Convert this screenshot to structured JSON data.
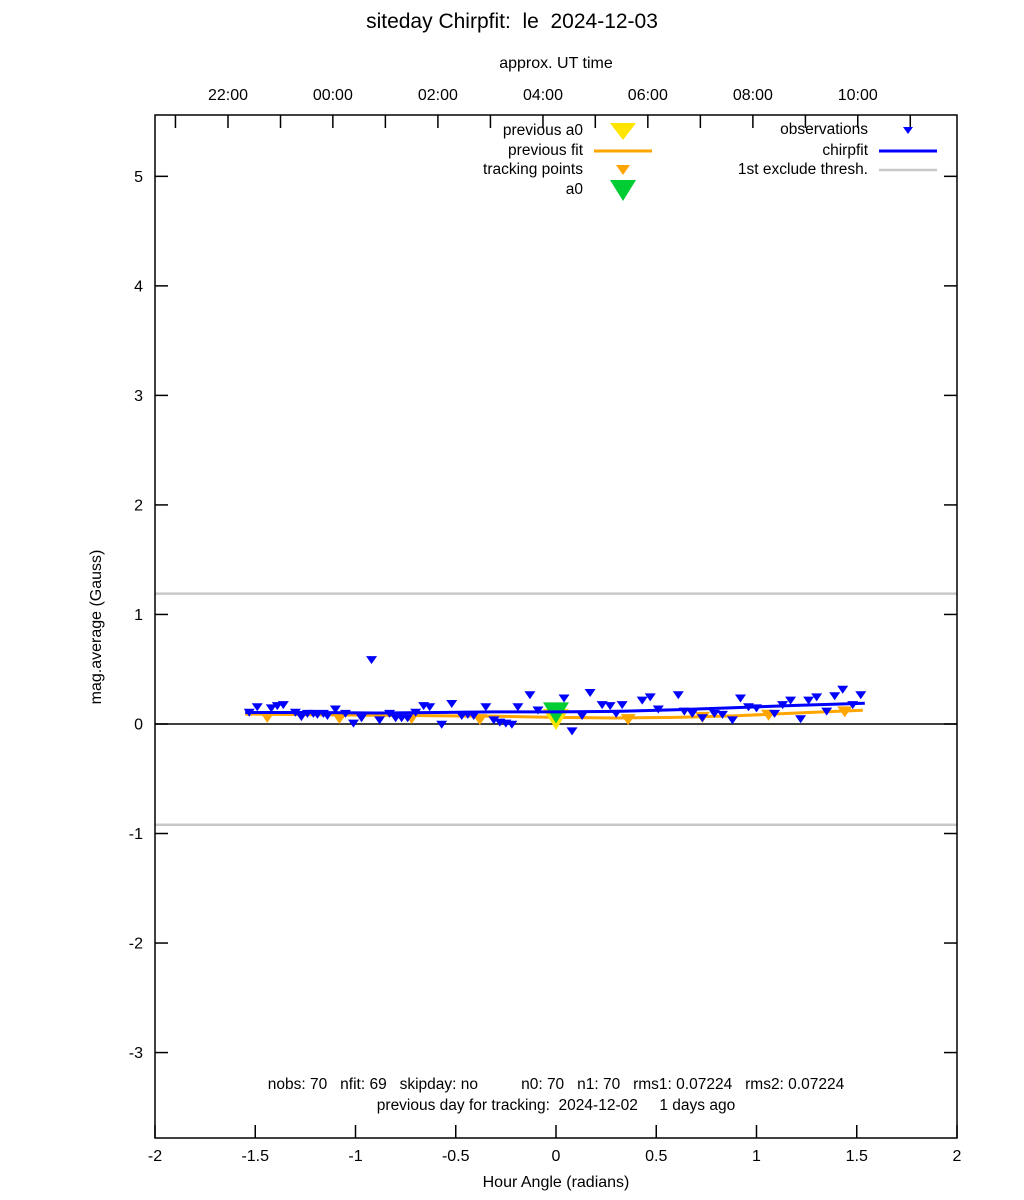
{
  "title": "siteday Chirpfit:  le  2024-12-03",
  "top_axis_label": "approx. UT time",
  "y_axis_label": "mag.average (Gauss)",
  "x_axis_label": "Hour Angle (radians)",
  "stats": {
    "line1": "nobs: 70   nfit: 69   skipday: no          n0: 70   n1: 70   rms1: 0.07224   rms2: 0.07224",
    "line2": "previous day for tracking:  2024-12-02     1 days ago"
  },
  "legend": {
    "left": [
      {
        "label": "previous a0",
        "marker": "large-triangle-down",
        "color": "#ffe500"
      },
      {
        "label": "previous fit",
        "marker": "line",
        "color": "#ffa500"
      },
      {
        "label": "tracking points",
        "marker": "small-triangle-down",
        "color": "#ffa500"
      },
      {
        "label": "a0",
        "marker": "large-triangle-down",
        "color": "#00cc33"
      }
    ],
    "right": [
      {
        "label": "observations",
        "marker": "small-triangle-down",
        "color": "#0000ff"
      },
      {
        "label": "chirpfit",
        "marker": "line",
        "color": "#0000ff"
      },
      {
        "label": "1st exclude thresh.",
        "marker": "line",
        "color": "#c8c8c8"
      }
    ]
  },
  "colors": {
    "observations": "#0000ff",
    "chirpfit": "#0000ff",
    "previous_fit": "#ffa500",
    "tracking_points": "#ffa500",
    "a0": "#00cc33",
    "previous_a0": "#ffe500",
    "exclude_threshold": "#c8c8c8"
  },
  "chart_data": {
    "type": "scatter",
    "title": "siteday Chirpfit:  le  2024-12-03",
    "xlabel": "Hour Angle (radians)",
    "ylabel": "mag.average (Gauss)",
    "xlim": [
      -2,
      2
    ],
    "ylim": [
      -3.78,
      5.56
    ],
    "grid": false,
    "zero_line": true,
    "x_ticks": [
      {
        "v": -2,
        "label": "-2"
      },
      {
        "v": -1.5,
        "label": "-1.5"
      },
      {
        "v": -1,
        "label": "-1"
      },
      {
        "v": -0.5,
        "label": "-0.5"
      },
      {
        "v": 0,
        "label": "0"
      },
      {
        "v": 0.5,
        "label": "0.5"
      },
      {
        "v": 1,
        "label": "1"
      },
      {
        "v": 1.5,
        "label": "1.5"
      },
      {
        "v": 2,
        "label": "2"
      }
    ],
    "y_ticks": [
      {
        "v": -3,
        "label": "-3"
      },
      {
        "v": -2,
        "label": "-2"
      },
      {
        "v": -1,
        "label": "-1"
      },
      {
        "v": 0,
        "label": "0"
      },
      {
        "v": 1,
        "label": "1"
      },
      {
        "v": 2,
        "label": "2"
      },
      {
        "v": 3,
        "label": "3"
      },
      {
        "v": 4,
        "label": "4"
      },
      {
        "v": 5,
        "label": "5"
      }
    ],
    "top_ticks": [
      {
        "ha": -1.898,
        "label": ""
      },
      {
        "ha": -1.636,
        "label": "22:00"
      },
      {
        "ha": -1.374,
        "label": ""
      },
      {
        "ha": -1.113,
        "label": "00:00"
      },
      {
        "ha": -0.851,
        "label": ""
      },
      {
        "ha": -0.589,
        "label": "02:00"
      },
      {
        "ha": -0.327,
        "label": ""
      },
      {
        "ha": -0.065,
        "label": "04:00"
      },
      {
        "ha": 0.196,
        "label": ""
      },
      {
        "ha": 0.458,
        "label": "06:00"
      },
      {
        "ha": 0.72,
        "label": ""
      },
      {
        "ha": 0.982,
        "label": "08:00"
      },
      {
        "ha": 1.244,
        "label": ""
      },
      {
        "ha": 1.505,
        "label": "10:00"
      },
      {
        "ha": 1.767,
        "label": ""
      }
    ],
    "thresholds": {
      "name": "1st exclude thresh.",
      "color": "#c8c8c8",
      "values": [
        1.19,
        -0.92
      ]
    },
    "series": [
      {
        "name": "previous fit",
        "type": "line",
        "color": "#ffa500",
        "width": 3,
        "points": [
          [
            -1.55,
            0.09
          ],
          [
            -1.2,
            0.085
          ],
          [
            -0.9,
            0.08
          ],
          [
            -0.6,
            0.075
          ],
          [
            -0.3,
            0.07
          ],
          [
            0,
            0.06
          ],
          [
            0.3,
            0.055
          ],
          [
            0.6,
            0.06
          ],
          [
            0.9,
            0.075
          ],
          [
            1.2,
            0.1
          ],
          [
            1.53,
            0.125
          ]
        ]
      },
      {
        "name": "previous a0",
        "type": "points",
        "marker": "triangle-down",
        "color": "#ffe500",
        "size": [
          26,
          21
        ],
        "points": [
          [
            0,
            0.06
          ]
        ]
      },
      {
        "name": "a0",
        "type": "points",
        "marker": "triangle-down",
        "color": "#00cc33",
        "size": [
          26,
          21
        ],
        "points": [
          [
            0,
            0.12
          ]
        ]
      },
      {
        "name": "tracking points",
        "type": "points",
        "marker": "triangle-down",
        "color": "#ffa500",
        "size": [
          15,
          11
        ],
        "points": [
          [
            -1.44,
            0.07
          ],
          [
            -1.08,
            0.06
          ],
          [
            -0.72,
            0.06
          ],
          [
            -0.38,
            0.05
          ],
          [
            0.36,
            0.05
          ],
          [
            0.73,
            0.07
          ],
          [
            1.06,
            0.09
          ],
          [
            1.44,
            0.12
          ]
        ]
      },
      {
        "name": "observations",
        "type": "points",
        "marker": "triangle-down",
        "color": "#0000ff",
        "size": [
          11,
          8
        ],
        "points": [
          [
            -1.53,
            0.11
          ],
          [
            -1.49,
            0.16
          ],
          [
            -1.42,
            0.15
          ],
          [
            -1.39,
            0.17
          ],
          [
            -1.36,
            0.18
          ],
          [
            -1.3,
            0.11
          ],
          [
            -1.27,
            0.07
          ],
          [
            -1.24,
            0.1
          ],
          [
            -1.21,
            0.1
          ],
          [
            -1.19,
            0.09
          ],
          [
            -1.16,
            0.1
          ],
          [
            -1.14,
            0.08
          ],
          [
            -1.1,
            0.14
          ],
          [
            -1.05,
            0.1
          ],
          [
            -1.01,
            0.01
          ],
          [
            -0.97,
            0.06
          ],
          [
            -0.92,
            0.59
          ],
          [
            -0.88,
            0.04
          ],
          [
            -0.83,
            0.1
          ],
          [
            -0.8,
            0.06
          ],
          [
            -0.77,
            0.06
          ],
          [
            -0.74,
            0.06
          ],
          [
            -0.7,
            0.11
          ],
          [
            -0.66,
            0.17
          ],
          [
            -0.63,
            0.16
          ],
          [
            -0.57,
            0.0
          ],
          [
            -0.52,
            0.19
          ],
          [
            -0.47,
            0.08
          ],
          [
            -0.44,
            0.09
          ],
          [
            -0.41,
            0.08
          ],
          [
            -0.35,
            0.16
          ],
          [
            -0.31,
            0.04
          ],
          [
            -0.28,
            0.02
          ],
          [
            -0.25,
            0.01
          ],
          [
            -0.22,
            0.0
          ],
          [
            -0.19,
            0.16
          ],
          [
            -0.13,
            0.27
          ],
          [
            -0.09,
            0.13
          ],
          [
            0.04,
            0.24
          ],
          [
            0.08,
            -0.06
          ],
          [
            0.13,
            0.08
          ],
          [
            0.17,
            0.29
          ],
          [
            0.23,
            0.18
          ],
          [
            0.27,
            0.17
          ],
          [
            0.3,
            0.1
          ],
          [
            0.33,
            0.18
          ],
          [
            0.43,
            0.22
          ],
          [
            0.47,
            0.25
          ],
          [
            0.51,
            0.14
          ],
          [
            0.61,
            0.27
          ],
          [
            0.64,
            0.12
          ],
          [
            0.68,
            0.1
          ],
          [
            0.73,
            0.06
          ],
          [
            0.79,
            0.1
          ],
          [
            0.83,
            0.09
          ],
          [
            0.88,
            0.04
          ],
          [
            0.92,
            0.24
          ],
          [
            0.96,
            0.16
          ],
          [
            1.0,
            0.15
          ],
          [
            1.09,
            0.1
          ],
          [
            1.13,
            0.18
          ],
          [
            1.17,
            0.22
          ],
          [
            1.22,
            0.05
          ],
          [
            1.26,
            0.22
          ],
          [
            1.3,
            0.25
          ],
          [
            1.35,
            0.12
          ],
          [
            1.39,
            0.26
          ],
          [
            1.43,
            0.32
          ],
          [
            1.48,
            0.18
          ],
          [
            1.52,
            0.27
          ]
        ]
      },
      {
        "name": "chirpfit",
        "type": "line",
        "color": "#0000ff",
        "width": 3,
        "points": [
          [
            -1.55,
            0.105
          ],
          [
            -1.2,
            0.105
          ],
          [
            -0.9,
            0.1
          ],
          [
            -0.6,
            0.105
          ],
          [
            -0.3,
            0.11
          ],
          [
            0,
            0.11
          ],
          [
            0.3,
            0.115
          ],
          [
            0.6,
            0.13
          ],
          [
            0.9,
            0.15
          ],
          [
            1.2,
            0.17
          ],
          [
            1.54,
            0.19
          ]
        ]
      }
    ],
    "annotations": [
      "nobs: 70",
      "nfit: 69",
      "skipday: no",
      "n0: 70",
      "n1: 70",
      "rms1: 0.07224",
      "rms2: 0.07224",
      "previous day for tracking: 2024-12-02",
      "1 days ago"
    ]
  }
}
